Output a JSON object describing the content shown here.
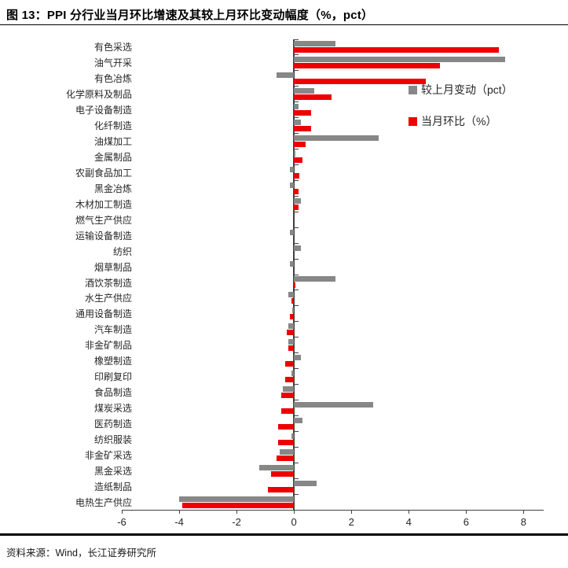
{
  "title": "图 13：PPI 分行业当月环比增速及其较上月环比变动幅度（%，pct）",
  "source": "资料来源：Wind，长江证券研究所",
  "chart_data": {
    "type": "bar",
    "orientation": "horizontal",
    "title": "图 13：PPI 分行业当月环比增速及其较上月环比变动幅度（%，pct）",
    "xlabel": "",
    "ylabel": "",
    "xlim": [
      -6,
      8
    ],
    "xticks": [
      -6,
      -4,
      -2,
      0,
      2,
      4,
      6,
      8
    ],
    "grid": false,
    "legend_position": "inside-right-top",
    "categories": [
      "有色采选",
      "油气开采",
      "有色冶炼",
      "化学原料及制品",
      "电子设备制造",
      "化纤制造",
      "油煤加工",
      "金属制品",
      "农副食品加工",
      "黑金冶炼",
      "木材加工制造",
      "燃气生产供应",
      "运输设备制造",
      "纺织",
      "烟草制品",
      "酒饮茶制造",
      "水生产供应",
      "通用设备制造",
      "汽车制造",
      "非金矿制品",
      "橡塑制造",
      "印刷复印",
      "食品制造",
      "煤炭采选",
      "医药制造",
      "纺织服装",
      "非金矿采选",
      "黑金采选",
      "造纸制品",
      "电热生产供应"
    ],
    "series": [
      {
        "name": "较上月变动（pct）",
        "color": "#878787",
        "values": [
          1.45,
          7.35,
          -0.6,
          0.7,
          0.15,
          0.25,
          2.95,
          0.05,
          -0.15,
          -0.15,
          0.25,
          0.0,
          -0.15,
          0.25,
          -0.15,
          1.45,
          -0.2,
          -0.05,
          -0.2,
          -0.2,
          0.25,
          -0.1,
          -0.4,
          2.75,
          0.3,
          -0.1,
          -0.5,
          -1.2,
          0.8,
          -4.0
        ]
      },
      {
        "name": "当月环比（%）",
        "color": "#ee0000",
        "values": [
          7.15,
          5.1,
          4.6,
          1.3,
          0.6,
          0.6,
          0.4,
          0.3,
          0.2,
          0.15,
          0.15,
          0.0,
          0.0,
          0.0,
          0.0,
          0.05,
          -0.1,
          -0.15,
          -0.25,
          -0.2,
          -0.3,
          -0.3,
          -0.45,
          -0.45,
          -0.55,
          -0.55,
          -0.6,
          -0.8,
          -0.9,
          -3.9
        ]
      }
    ]
  }
}
